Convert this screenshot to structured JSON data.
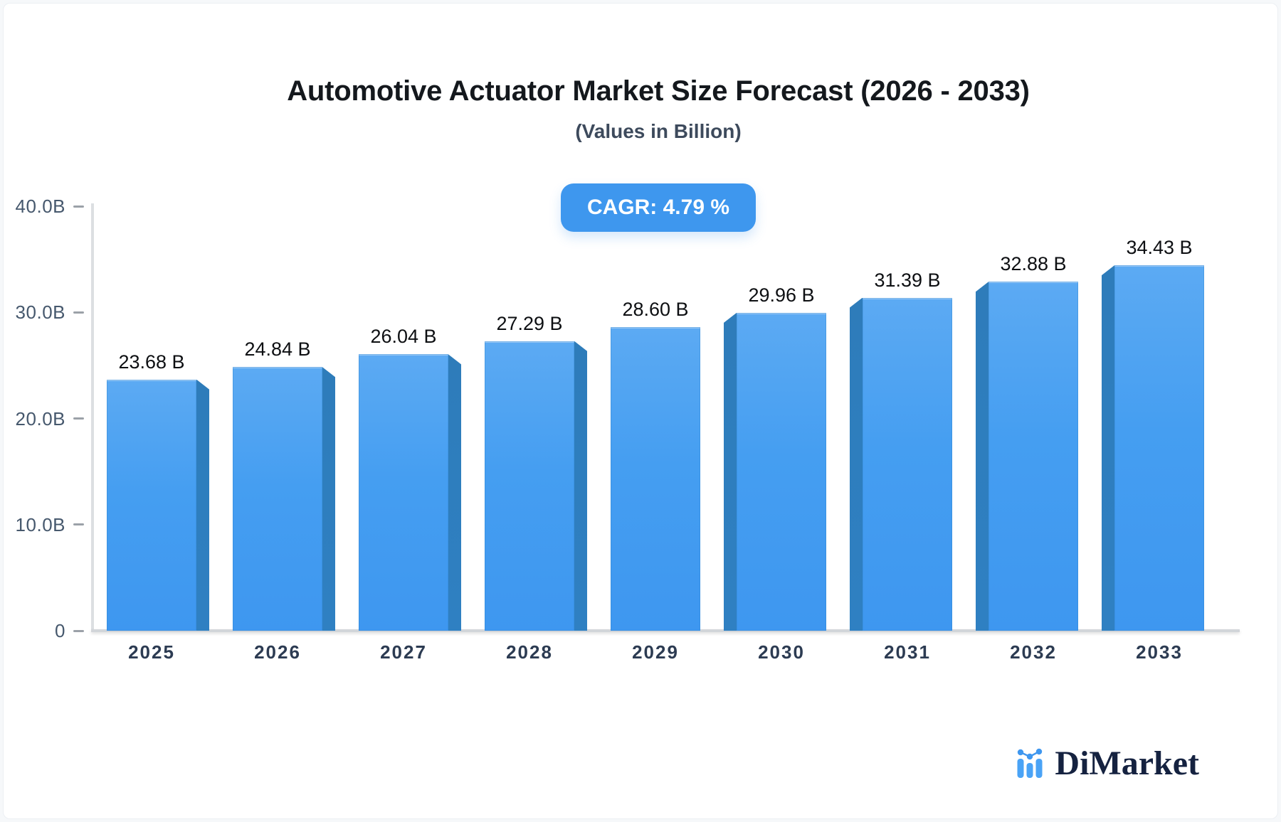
{
  "header": {
    "title": "Automotive Actuator Market Size Forecast (2026 - 2033)",
    "subtitle": "(Values in Billion)",
    "cagr_badge": "CAGR: 4.79 %"
  },
  "chart_data": {
    "type": "bar",
    "title": "Automotive Actuator Market Size Forecast (2026 - 2033)",
    "subtitle": "(Values in Billion)",
    "annotation": "CAGR: 4.79 %",
    "categories": [
      "2025",
      "2026",
      "2027",
      "2028",
      "2029",
      "2030",
      "2031",
      "2032",
      "2033"
    ],
    "values": [
      23.68,
      24.84,
      26.04,
      27.29,
      28.6,
      29.96,
      31.39,
      32.88,
      34.43
    ],
    "value_labels": [
      "23.68 B",
      "24.84 B",
      "26.04 B",
      "27.29 B",
      "28.60 B",
      "29.96 B",
      "31.39 B",
      "32.88 B",
      "34.43 B"
    ],
    "xlabel": "",
    "ylabel": "",
    "ylim": [
      0,
      40
    ],
    "yticks": [
      {
        "value": 40,
        "label": "40.0B"
      },
      {
        "value": 30,
        "label": "30.0B"
      },
      {
        "value": 20,
        "label": "20.0B"
      },
      {
        "value": 10,
        "label": "10.0B"
      },
      {
        "value": 0,
        "label": "0"
      }
    ],
    "grid": "off",
    "legend": "none",
    "bar_style": "3d-extruded",
    "bar_face_color": "#3f9af1",
    "bar_side_color": "#2e7cba"
  },
  "footer": {
    "brand_name": "DiMarket",
    "brand_icon": "bar-line-chart-icon"
  },
  "colors": {
    "accent_blue": "#3e97ee",
    "axis_text": "#46586d",
    "category_text": "#2c3b52",
    "title_text": "#14181d",
    "value_label_text": "#0d0f12",
    "brand_navy": "#152240"
  }
}
